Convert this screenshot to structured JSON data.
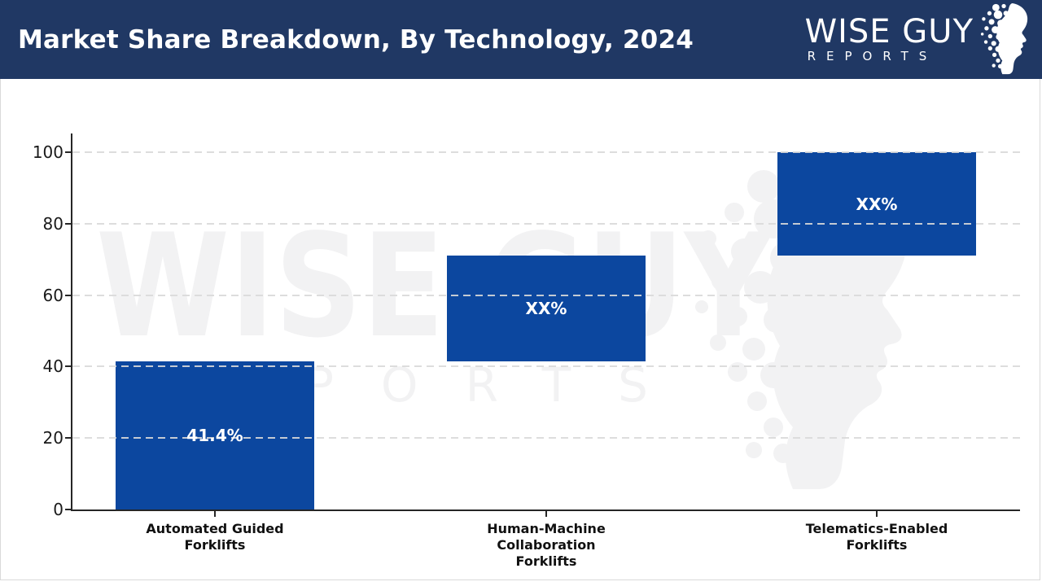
{
  "header": {
    "title": "Market Share Breakdown, By Technology, 2024",
    "logo": {
      "line1": "WISE GUY",
      "line2": "REPORTS"
    }
  },
  "watermark": {
    "line1": "WISE GUY",
    "line2": "REPORTS"
  },
  "colors": {
    "header_background": "#203864",
    "bar_fill": "#0c479f",
    "gridline": "#d9d9d9",
    "axis": "#262626",
    "watermark": "#f2f2f3"
  },
  "chart_data": {
    "type": "bar",
    "subtype": "waterfall",
    "title": "Market Share Breakdown, By Technology, 2024",
    "categories": [
      "Automated Guided\nForklifts",
      "Human-Machine\nCollaboration\nForklifts",
      "Telematics-Enabled\nForklifts"
    ],
    "bars": [
      {
        "category": "Automated Guided Forklifts",
        "start": 0,
        "end": 41.4,
        "data_label": "41.4%"
      },
      {
        "category": "Human-Machine Collaboration Forklifts",
        "start": 41.4,
        "end": 71,
        "data_label": "XX%"
      },
      {
        "category": "Telematics-Enabled Forklifts",
        "start": 71,
        "end": 100,
        "data_label": "XX%"
      }
    ],
    "xlabel": "",
    "ylabel": "",
    "ylim": [
      0,
      100
    ],
    "yticks": [
      0,
      20,
      40,
      60,
      80,
      100
    ],
    "grid": "horizontal dashed",
    "legend": "none"
  }
}
